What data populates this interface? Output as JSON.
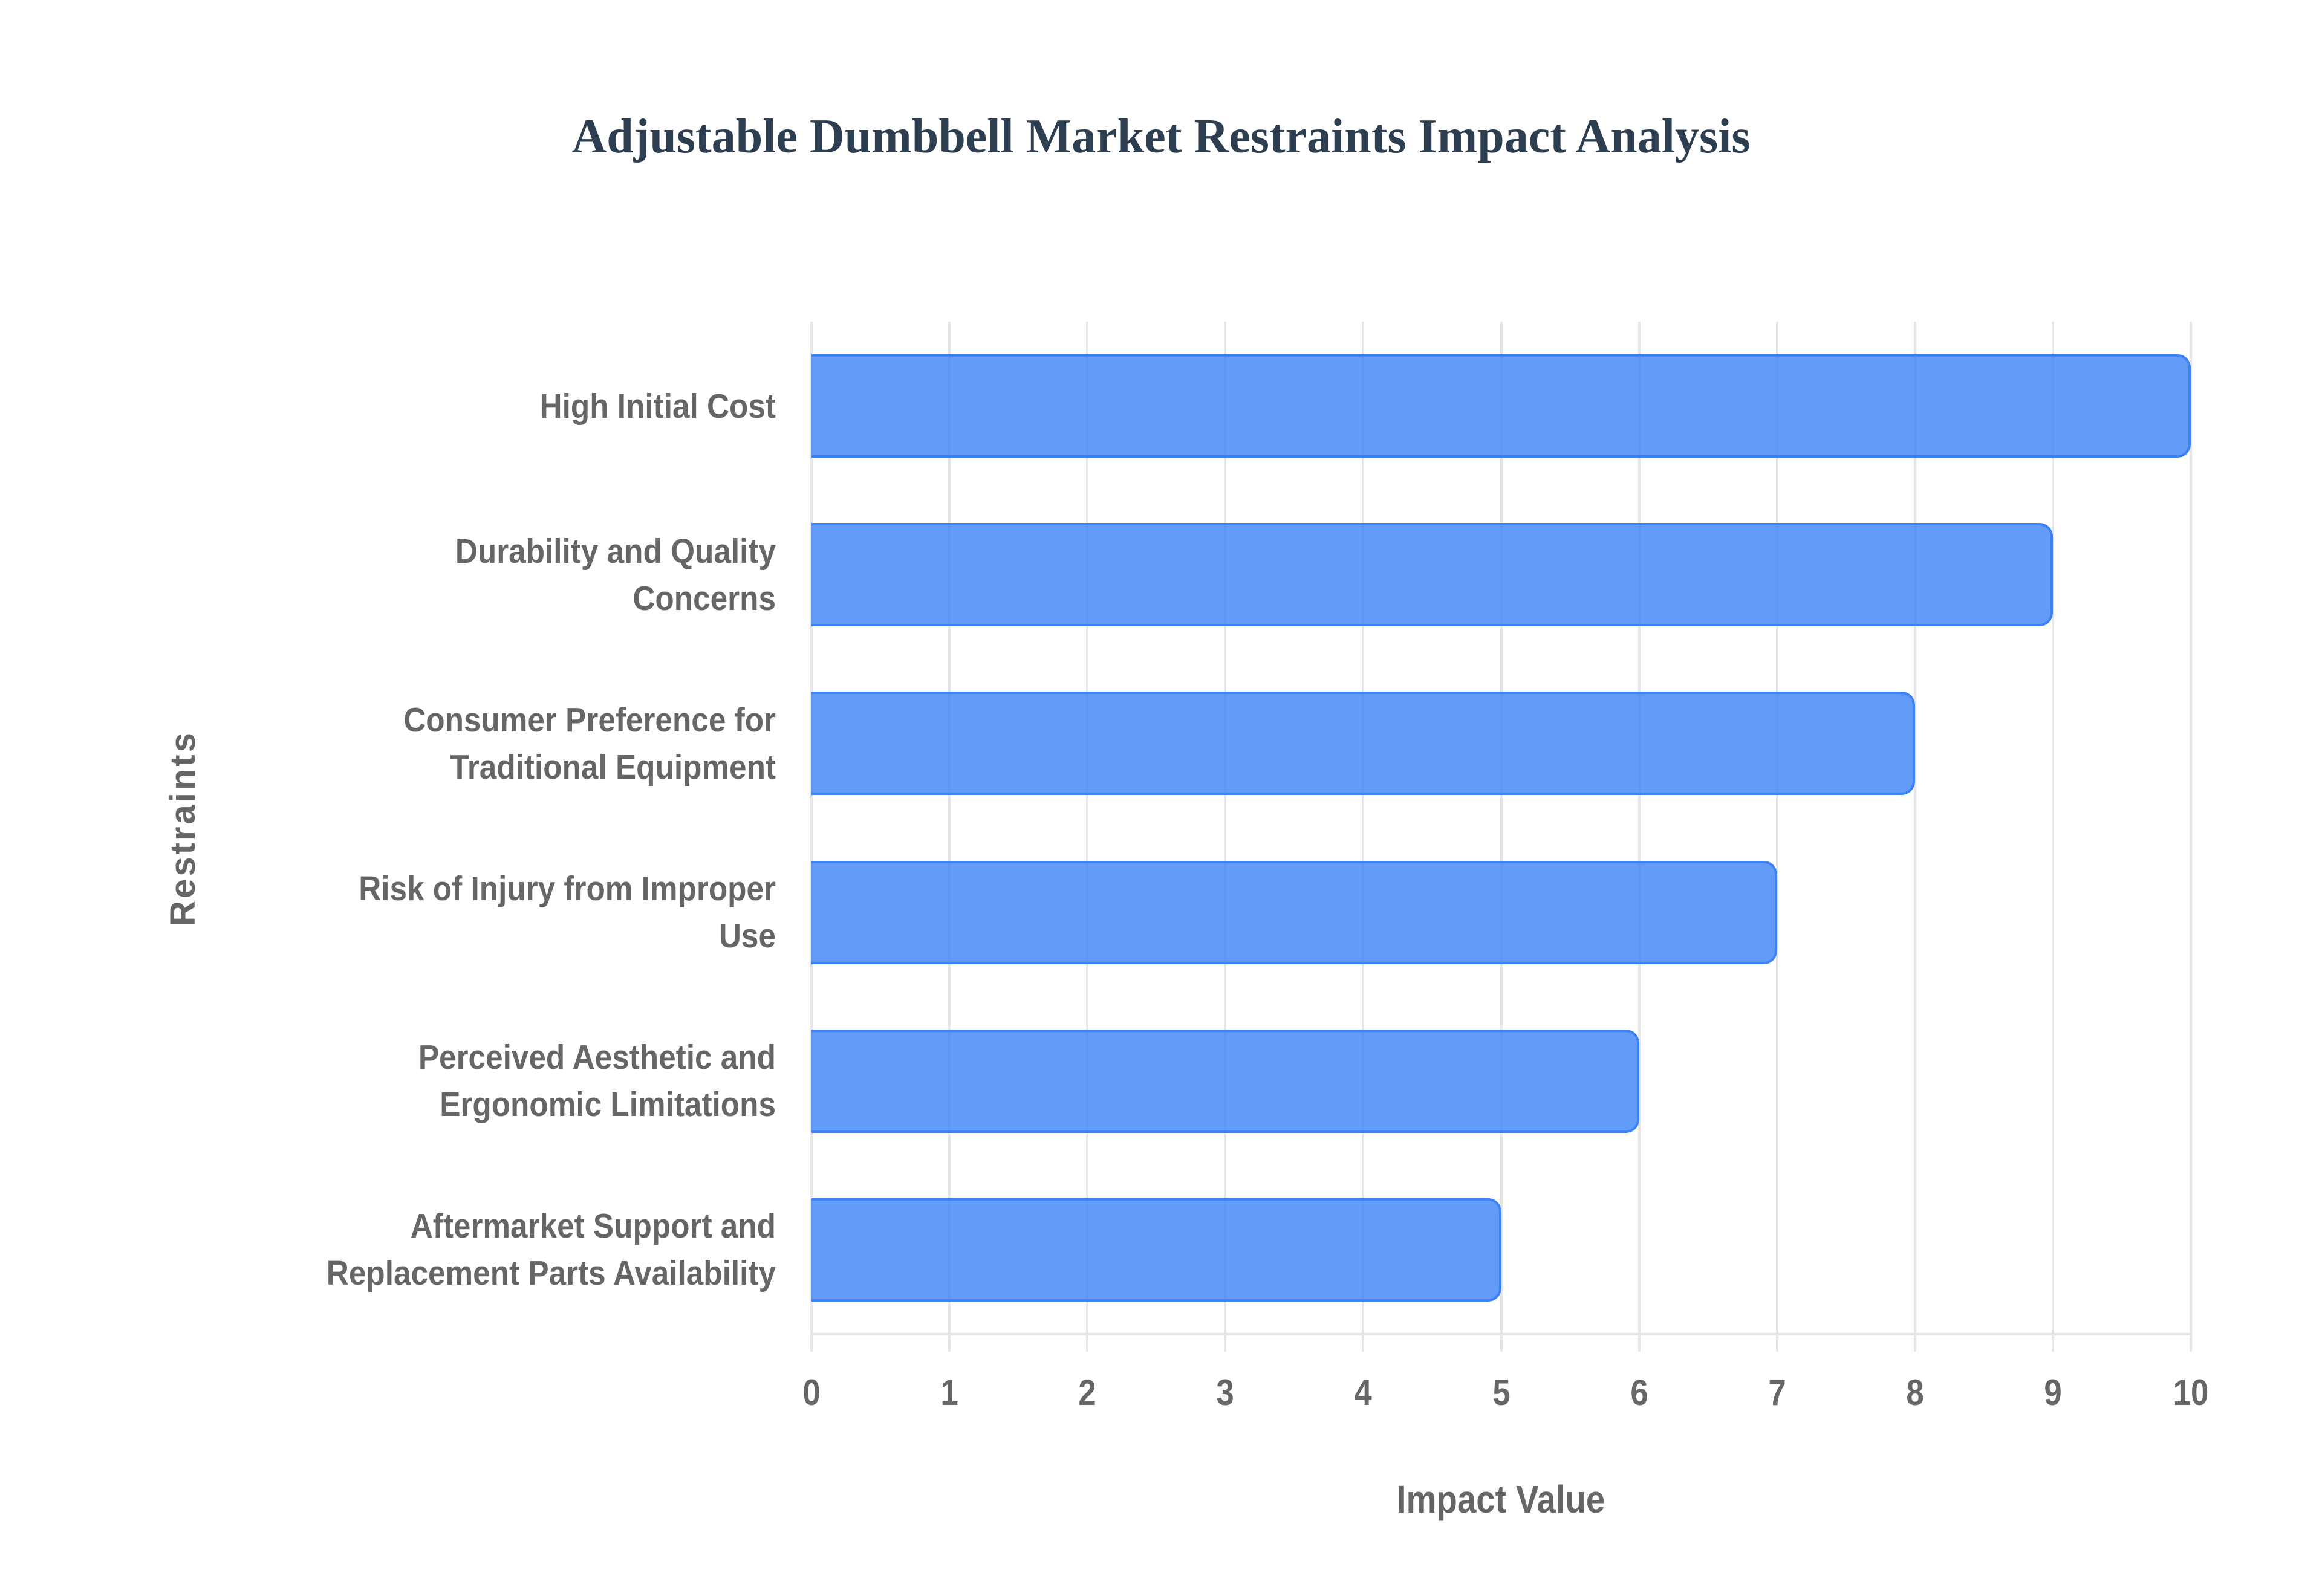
{
  "chart_data": {
    "type": "bar",
    "orientation": "horizontal",
    "title": "Adjustable Dumbbell Market Restraints Impact Analysis",
    "xlabel": "Impact Value",
    "ylabel": "Restraints",
    "categories": [
      "High Initial Cost",
      "Durability and Quality Concerns",
      "Consumer Preference for Traditional Equipment",
      "Risk of Injury from Improper Use",
      "Perceived Aesthetic and Ergonomic Limitations",
      "Aftermarket Support and Replacement Parts Availability"
    ],
    "category_label_lines": [
      [
        "High Initial Cost"
      ],
      [
        "Durability and Quality",
        "Concerns"
      ],
      [
        "Consumer Preference for",
        "Traditional Equipment"
      ],
      [
        "Risk of Injury from Improper",
        "Use"
      ],
      [
        "Perceived Aesthetic and",
        "Ergonomic Limitations"
      ],
      [
        "Aftermarket Support and",
        "Replacement Parts Availability"
      ]
    ],
    "series": [
      {
        "name": "Impact Value",
        "values": [
          10,
          9,
          8,
          7,
          6,
          5
        ],
        "fill_color": "rgba(59,130,246,0.8)",
        "border_color": "#3b82f6"
      }
    ],
    "xlim": [
      0,
      10
    ],
    "x_ticks": [
      "0",
      "1",
      "2",
      "3",
      "4",
      "5",
      "6",
      "7",
      "8",
      "9",
      "10"
    ],
    "grid": true,
    "legend": "none"
  },
  "colors": {
    "title": "#2c3e50",
    "axis_text": "#666666",
    "grid": "#e6e6e6",
    "bar_fill": "rgba(59,130,246,0.8)",
    "bar_border": "#3b82f6"
  }
}
